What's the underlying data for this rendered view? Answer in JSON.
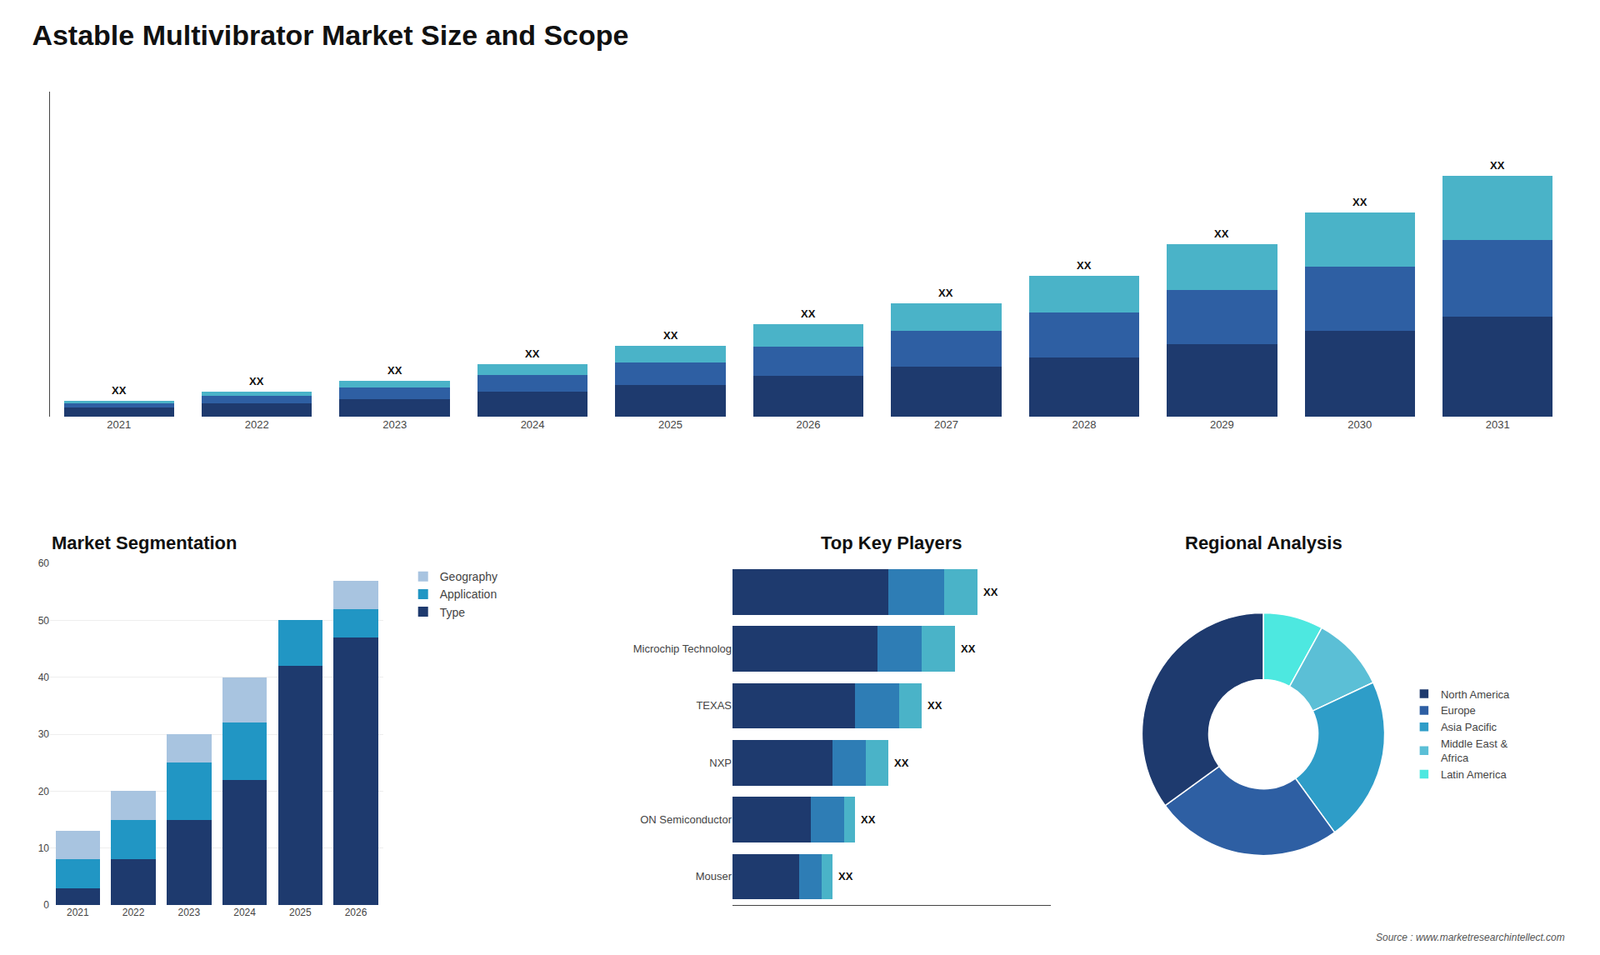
{
  "chart_data": [
    {
      "type": "bar",
      "title": "Astable Multivibrator Market Size and Scope",
      "categories": [
        "2021",
        "2022",
        "2023",
        "2024",
        "2025",
        "2026",
        "2027",
        "2028",
        "2029",
        "2030",
        "2031"
      ],
      "stacked": true,
      "series": [
        {
          "color": "#1e3a6e",
          "values": [
            1.0,
            1.5,
            2.0,
            2.8,
            3.5,
            4.5,
            5.5,
            6.5,
            8.0,
            9.5,
            11.0
          ]
        },
        {
          "color": "#2e5fa3",
          "values": [
            0.5,
            0.8,
            1.2,
            1.8,
            2.5,
            3.2,
            4.0,
            5.0,
            6.0,
            7.0,
            8.5
          ]
        },
        {
          "color": "#4ab3c8",
          "values": [
            0.3,
            0.5,
            0.8,
            1.2,
            1.8,
            2.5,
            3.0,
            4.0,
            5.0,
            6.0,
            7.0
          ]
        }
      ],
      "ylim": [
        0,
        35.775
      ],
      "tick_labels": "x",
      "grid": false,
      "annotations": [
        "XX",
        "XX",
        "XX",
        "XX",
        "XX",
        "XX",
        "XX",
        "XX",
        "XX",
        "XX",
        "XX"
      ]
    },
    {
      "type": "bar",
      "title": "Market Segmentation",
      "categories": [
        "2021",
        "2022",
        "2023",
        "2024",
        "2025",
        "2026"
      ],
      "stacked": true,
      "series": [
        {
          "name": "Type",
          "color": "#1e3a6e",
          "values": [
            3,
            8,
            15,
            22,
            42,
            47
          ]
        },
        {
          "name": "Application",
          "color": "#2196c4",
          "values": [
            5,
            7,
            10,
            10,
            8,
            5
          ]
        },
        {
          "name": "Geography",
          "color": "#a8c4e0",
          "values": [
            5,
            5,
            5,
            8,
            0,
            5
          ]
        }
      ],
      "ylim": [
        0,
        60
      ],
      "yticks": [
        0,
        10,
        20,
        30,
        40,
        50,
        60
      ],
      "grid": true,
      "legend": "right"
    },
    {
      "type": "bar",
      "title": "Top Key Players",
      "orientation": "horizontal",
      "stacked": true,
      "categories": [
        null,
        "Microchip Technolog",
        "TEXAS",
        "NXP",
        "ON Semiconductor",
        "Mouser"
      ],
      "series": [
        {
          "color": "#1e3a6e",
          "values": [
            7.0,
            6.5,
            5.5,
            4.5,
            3.5,
            3.0
          ]
        },
        {
          "color": "#2e7db5",
          "values": [
            2.5,
            2.0,
            2.0,
            1.5,
            1.5,
            1.0
          ]
        },
        {
          "color": "#4ab3c8",
          "values": [
            1.5,
            1.5,
            1.0,
            1.0,
            0.5,
            0.5
          ]
        }
      ],
      "xlim": [
        0,
        14.3
      ],
      "tick_labels": "y",
      "grid": false,
      "annotations": [
        "XX",
        "XX",
        "XX",
        "XX",
        "XX",
        "XX"
      ]
    },
    {
      "type": "donut",
      "title": "Regional Analysis",
      "categories": [
        "Latin America",
        "Middle East &\nAfrica",
        "Asia Pacific",
        "Europe",
        "North America"
      ],
      "values": [
        8,
        10,
        22,
        25,
        35
      ],
      "colors": [
        "#4de8e0",
        "#5bbfd6",
        "#2e9dc8",
        "#2e5fa3",
        "#1e3a6e"
      ],
      "legend": "right",
      "annotations": [
        "Source : www.marketresearchintellect.com"
      ]
    }
  ]
}
